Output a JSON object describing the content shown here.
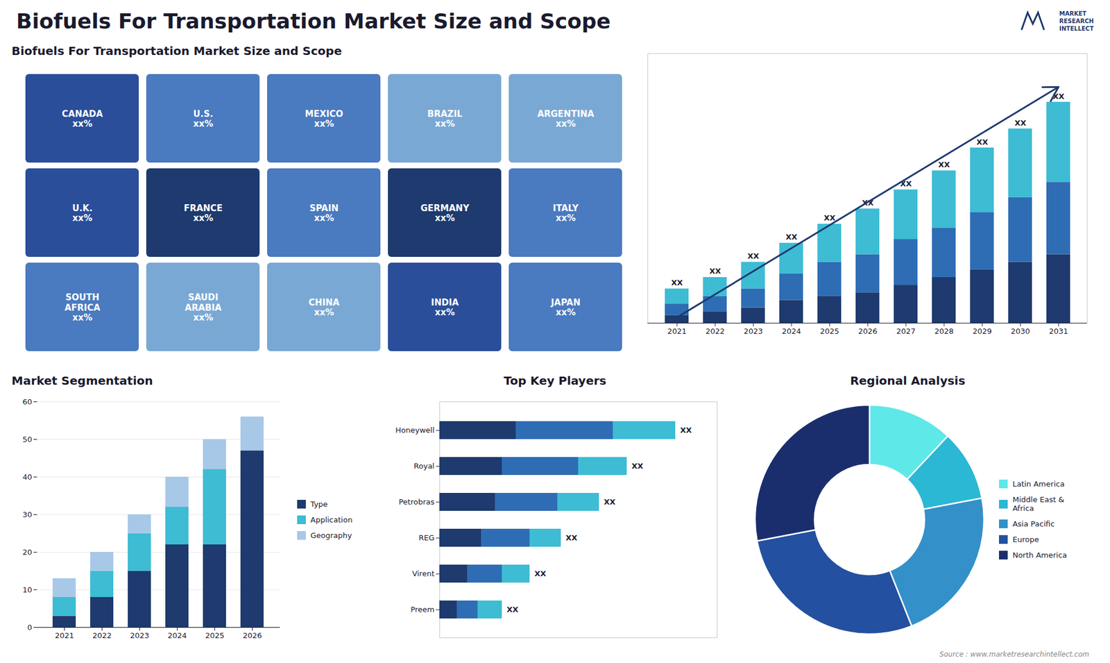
{
  "chart_data": [
    {
      "type": "map",
      "title": "Biofuels For Transportation Market Size and Scope",
      "categories": [
        "CANADA\nxx%",
        "U.S.\nxx%",
        "MEXICO\nxx%",
        "BRAZIL\nxx%",
        "ARGENTINA\nxx%",
        "U.K.\nxx%",
        "FRANCE\nxx%",
        "SPAIN\nxx%",
        "GERMANY\nxx%",
        "ITALY\nxx%",
        "SOUTH\nAFRICA\nxx%",
        "SAUDI\nARABIA\nxx%",
        "CHINA\nxx%",
        "INDIA\nxx%",
        "JAPAN\nxx%"
      ],
      "colors": [
        "#2a4e9a",
        "#4a7abf",
        "#4a7abf",
        "#7aa8d4",
        "#7aa8d4",
        "#2a4e9a",
        "#1e3a6e",
        "#4a7abf",
        "#1e3a6e",
        "#4a7abf",
        "#4a7abf",
        "#7aa8d4",
        "#7aa8d4",
        "#2a4e9a",
        "#4a7abf"
      ],
      "annotations": [
        "MARKET",
        "RESEARCH",
        "INTELLECT"
      ]
    },
    {
      "type": "bar",
      "stacked": true,
      "categories": [
        "2021",
        "2022",
        "2023",
        "2024",
        "2025",
        "2026",
        "2027",
        "2028",
        "2029",
        "2030",
        "2031"
      ],
      "series": [
        {
          "color": "#1e3a6e",
          "values": [
            2,
            3,
            4,
            6,
            7,
            8,
            10,
            12,
            14,
            16,
            18
          ]
        },
        {
          "color": "#2e6db4",
          "values": [
            3,
            4,
            5,
            7,
            9,
            10,
            12,
            13,
            15,
            17,
            19
          ]
        },
        {
          "color": "#3dbcd4",
          "values": [
            4,
            5,
            7,
            8,
            10,
            12,
            13,
            15,
            17,
            18,
            21
          ]
        }
      ],
      "ylim": [
        0,
        70.76
      ],
      "tick_labels": "x",
      "data_labels": true,
      "value_labels": [
        "XX",
        "XX",
        "XX",
        "XX",
        "XX",
        "XX",
        "XX",
        "XX",
        "XX",
        "XX",
        "XX"
      ],
      "trend": {
        "color": "#1e3a6e",
        "values": [
          1.5,
          62
        ]
      }
    },
    {
      "type": "bar",
      "stacked": true,
      "title": "Market Segmentation",
      "categories": [
        "2021",
        "2022",
        "2023",
        "2024",
        "2025",
        "2026"
      ],
      "series": [
        {
          "name": "Type",
          "color": "#1e3a6e",
          "values": [
            3,
            8,
            15,
            22,
            22,
            47
          ]
        },
        {
          "name": "Application",
          "color": "#3dbcd4",
          "values": [
            5,
            7,
            10,
            10,
            20,
            0
          ]
        },
        {
          "name": "Geography",
          "color": "#a8c8e8",
          "values": [
            5,
            5,
            5,
            8,
            8,
            9
          ]
        }
      ],
      "ylim": [
        0,
        60
      ],
      "yticks": [
        0,
        10,
        20,
        30,
        40,
        50,
        60
      ],
      "grid": true,
      "legend": "right"
    },
    {
      "type": "bar",
      "stacked": true,
      "orientation": "horizontal",
      "title": "Top Key Players",
      "categories": [
        "Honeywell",
        "Royal",
        "Petrobras",
        "REG",
        "Virent",
        "Preem"
      ],
      "series": [
        {
          "color": "#1e3a6e",
          "values": [
            22,
            18,
            16,
            12,
            8,
            5
          ]
        },
        {
          "color": "#2e6db4",
          "values": [
            28,
            22,
            18,
            14,
            10,
            6
          ]
        },
        {
          "color": "#3dbcd4",
          "values": [
            18,
            14,
            12,
            9,
            8,
            7
          ]
        }
      ],
      "xlim": [
        0,
        80
      ],
      "tick_labels": "y",
      "data_labels": true,
      "value_labels": [
        "XX",
        "XX",
        "XX",
        "XX",
        "XX",
        "XX"
      ]
    },
    {
      "type": "pie",
      "title": "Regional Analysis",
      "categories": [
        "Latin America",
        "Middle East &\nAfrica",
        "Asia Pacific",
        "Europe",
        "North America"
      ],
      "values": [
        12,
        10,
        22,
        28,
        28
      ],
      "colors": [
        "#5ee8e8",
        "#2ab8d4",
        "#3490c8",
        "#2350a0",
        "#1a2e6e"
      ],
      "legend": "right",
      "annotations": [
        "Source : www.marketresearchintellect.com"
      ]
    }
  ]
}
